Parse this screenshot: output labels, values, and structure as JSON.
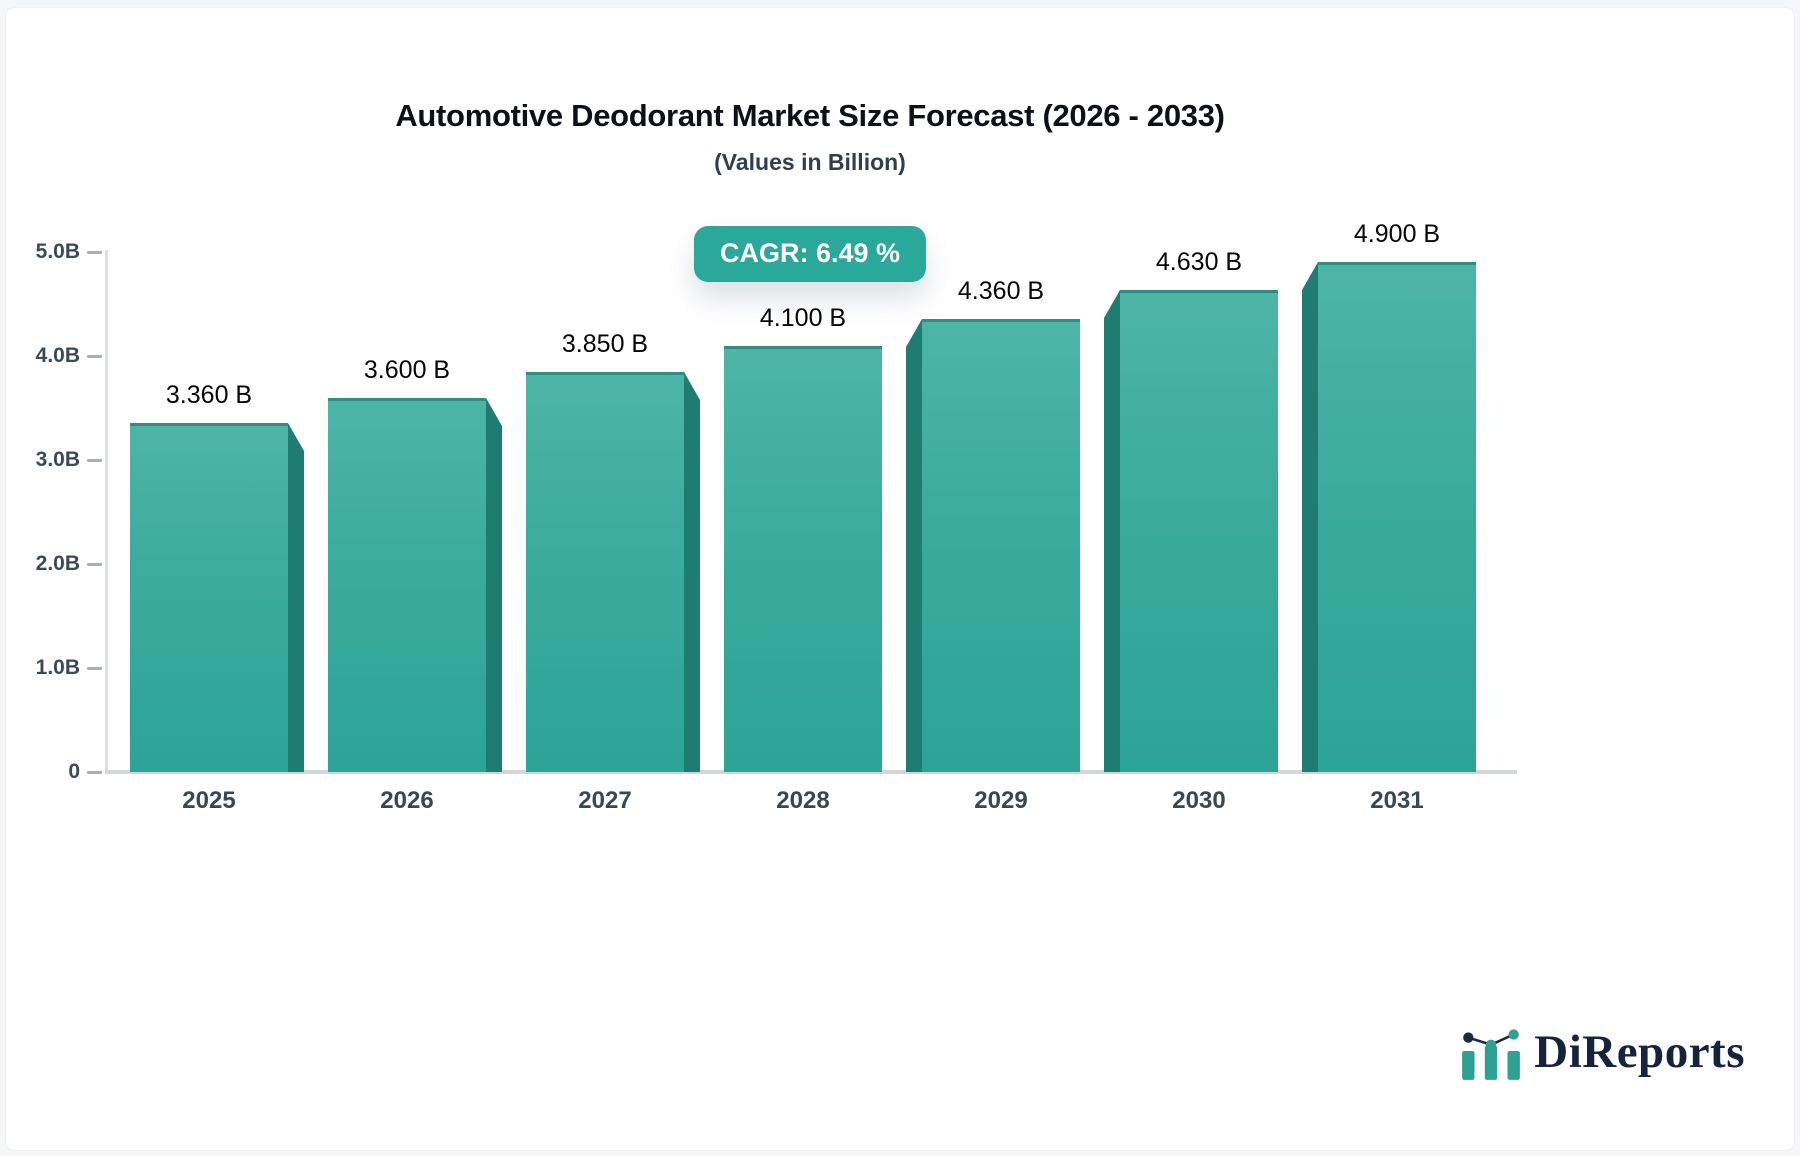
{
  "header": {
    "title": "Automotive Deodorant Market Size Forecast (2026 - 2033)",
    "subtitle": "(Values in Billion)"
  },
  "badge": {
    "label": "CAGR: 6.49 %",
    "background_color": "#2aa89a",
    "text_color": "#ffffff"
  },
  "chart_data": {
    "type": "bar",
    "title": "Automotive Deodorant Market Size Forecast (2026 - 2033)",
    "subtitle": "(Values in Billion)",
    "categories": [
      "2025",
      "2026",
      "2027",
      "2028",
      "2029",
      "2030",
      "2031"
    ],
    "values": [
      3.36,
      3.6,
      3.85,
      4.1,
      4.36,
      4.63,
      4.9
    ],
    "value_labels": [
      "3.360 B",
      "3.600 B",
      "3.850 B",
      "4.100 B",
      "4.360 B",
      "4.630 B",
      "4.900 B"
    ],
    "unit": "B",
    "xlabel": "",
    "ylabel": "",
    "ylim": [
      0,
      5
    ],
    "yticks": [
      {
        "value": 0,
        "label": "0"
      },
      {
        "value": 1,
        "label": "1.0B"
      },
      {
        "value": 2,
        "label": "2.0B"
      },
      {
        "value": 3,
        "label": "3.0B"
      },
      {
        "value": 4,
        "label": "4.0B"
      },
      {
        "value": 5,
        "label": "5.0B"
      }
    ],
    "grid": false,
    "legend": false,
    "bar_style": {
      "face_gradient_top": "#4db5a7",
      "face_gradient_bottom": "#2ca496",
      "side_color": "#1f7c71",
      "top_edge_color": "#2f8d82",
      "effect": "3d-perspective-center-vanishing"
    }
  },
  "footer": {
    "logo_text": "DiReports",
    "logo_icon": "bar-chart-trend-icon",
    "logo_accent_color": "#2ea193",
    "logo_text_color": "#16233c"
  }
}
